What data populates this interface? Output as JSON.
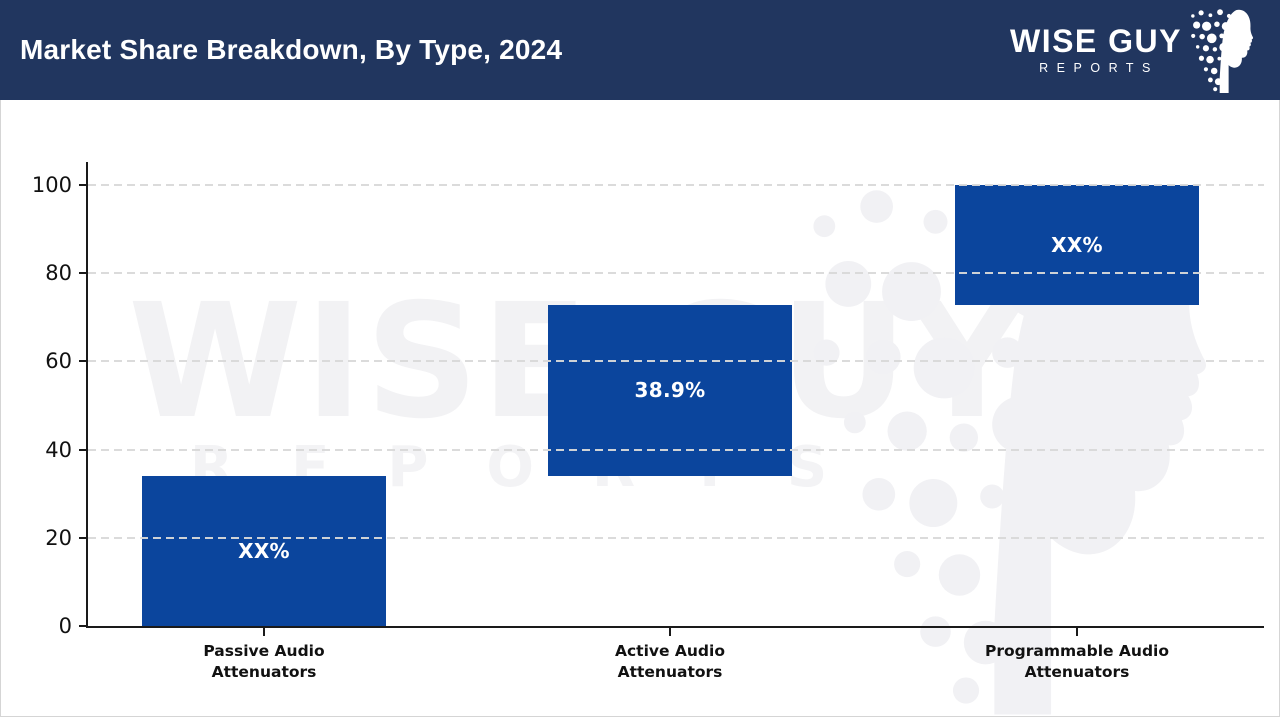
{
  "header": {
    "title": "Market Share Breakdown, By Type, 2024",
    "background_color": "#21365f",
    "logo": {
      "wordmark": "WISE GUY",
      "subtext": "REPORTS"
    }
  },
  "watermark": {
    "wordmark": "WISE GUY",
    "subtext": "REPORTS"
  },
  "chart_data": {
    "type": "bar",
    "subtype": "waterfall",
    "title": "Market Share Breakdown, By Type, 2024",
    "unit": "%",
    "bar_color": "#0b459d",
    "grid": {
      "axis": "y",
      "style": "dashed",
      "color": "#d9d9d9"
    },
    "ylim": [
      0,
      105
    ],
    "yticks": [
      0,
      20,
      40,
      60,
      80,
      100
    ],
    "legend": "none",
    "categories": [
      {
        "id": "passive-audio-attenuators",
        "name": "Passive Audio Attenuators",
        "lines": [
          "Passive Audio",
          "Attenuators"
        ]
      },
      {
        "id": "active-audio-attenuators",
        "name": "Active Audio Attenuators",
        "lines": [
          "Active Audio",
          "Attenuators"
        ]
      },
      {
        "id": "programmable-audio-attenuators",
        "name": "Programmable Audio Attenuators",
        "lines": [
          "Programmable Audio",
          "Attenuators"
        ]
      }
    ],
    "segments": [
      {
        "category": "Passive Audio Attenuators",
        "start": 0,
        "end": 34,
        "label": "XX%",
        "value_estimated": 34,
        "value_masked": true
      },
      {
        "category": "Active Audio Attenuators",
        "start": 34,
        "end": 72.9,
        "label": "38.9%",
        "value_estimated": 38.9,
        "value_masked": false
      },
      {
        "category": "Programmable Audio Attenuators",
        "start": 72.9,
        "end": 100,
        "label": "XX%",
        "value_estimated": 27.1,
        "value_masked": true
      }
    ]
  }
}
